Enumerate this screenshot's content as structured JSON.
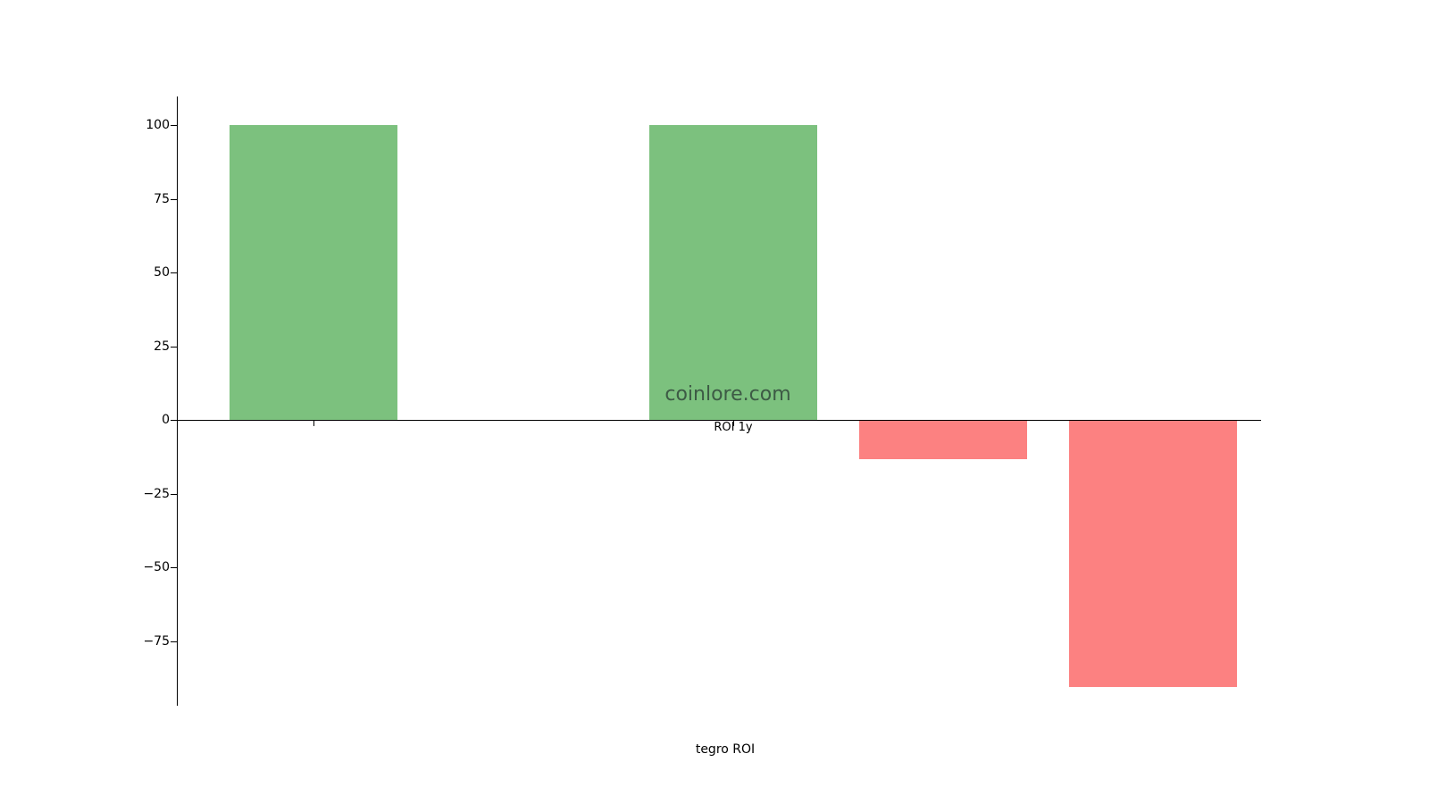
{
  "watermark": {
    "text": "coinlore.com",
    "color": "#3d5a45"
  },
  "chart_data": {
    "type": "bar",
    "title": "",
    "xlabel": "tegro ROI",
    "ylabel": "",
    "categories": [
      "",
      "",
      "ROI 1y",
      "",
      ""
    ],
    "values": [
      100,
      0,
      100,
      -13.3,
      -90.6
    ],
    "positive_color": "#7cc17e",
    "negative_color": "#fc8181",
    "axis_color": "#000000",
    "background_color": "#ffffff",
    "y_ticks": [
      100,
      75,
      50,
      25,
      0,
      -25,
      -50,
      -75
    ],
    "y_tick_labels": [
      "100",
      "75",
      "50",
      "25",
      "0",
      "−25",
      "−50",
      "−75"
    ],
    "visible_x_tick_indices": [
      0,
      2
    ],
    "ylim": [
      -97,
      110
    ],
    "grid": false,
    "legend": "none"
  }
}
